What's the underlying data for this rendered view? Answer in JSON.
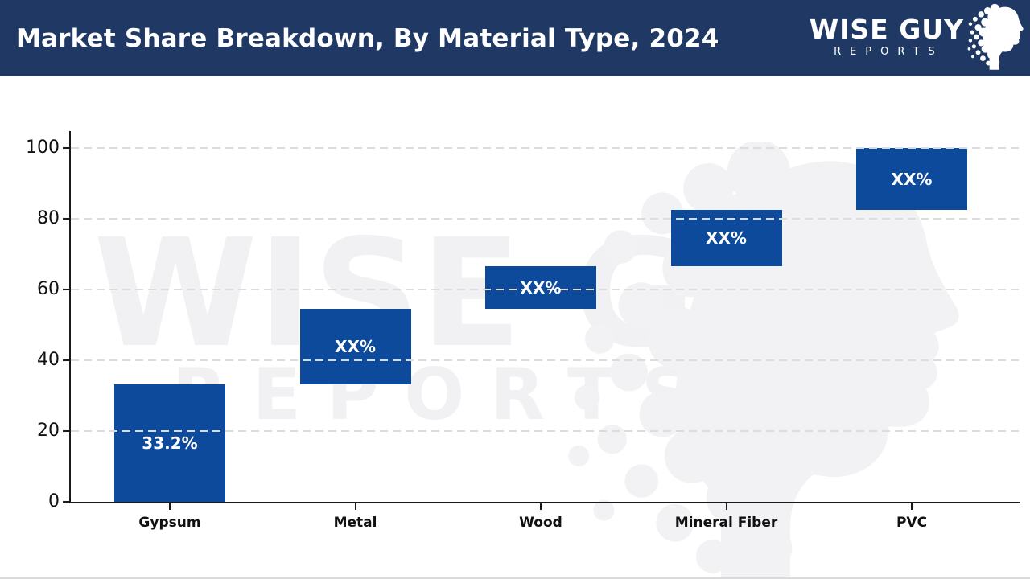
{
  "theme": {
    "header_bg": "#1f3964",
    "bar_color": "#0d4a9c",
    "grid_color": "#dcdcdc",
    "axis_color": "#1a1a1a",
    "tick_label_color": "#111111",
    "bar_label_color": "#ffffff",
    "watermark_color": "#f1f1f3"
  },
  "header": {
    "title": "Market Share Breakdown, By Material Type, 2024"
  },
  "logo": {
    "line1": "WISE GUY",
    "line2": "REPORTS"
  },
  "watermark": {
    "line1": "WISE GUY",
    "line2": "REPORTS"
  },
  "chart_data": {
    "type": "bar",
    "subtype": "waterfall",
    "title": "Market Share Breakdown, By Material Type, 2024",
    "categories": [
      "Gypsum",
      "Metal",
      "Wood",
      "Mineral Fiber",
      "PVC"
    ],
    "segments": [
      {
        "category": "Gypsum",
        "start": 0,
        "end": 33.2,
        "label": "33.2%"
      },
      {
        "category": "Metal",
        "start": 33.2,
        "end": 54.5,
        "label": "XX%"
      },
      {
        "category": "Wood",
        "start": 54.5,
        "end": 66.5,
        "label": "XX%"
      },
      {
        "category": "Mineral Fiber",
        "start": 66.5,
        "end": 82.5,
        "label": "XX%"
      },
      {
        "category": "PVC",
        "start": 82.5,
        "end": 100,
        "label": "XX%"
      }
    ],
    "y_ticks": [
      0,
      20,
      40,
      60,
      80,
      100
    ],
    "ylim": [
      0,
      104.8
    ],
    "xlabel": "",
    "ylabel": "",
    "grid": "horizontal-dashed-above-bars",
    "legend": "none"
  }
}
